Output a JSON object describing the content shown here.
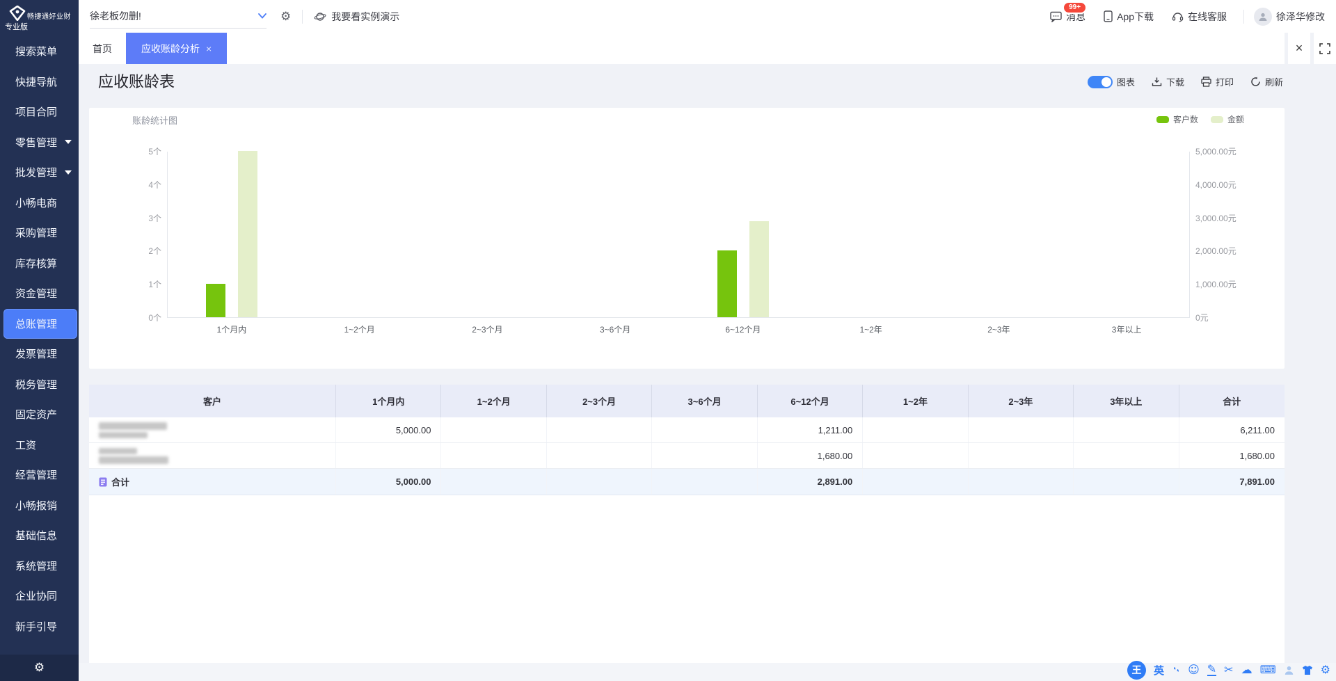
{
  "app": {
    "brand": "畅捷通好业财",
    "edition": "专业版",
    "company": "徐老板勿删!",
    "demo_link": "我要看实例演示",
    "messages_label": "消息",
    "messages_badge": "99+",
    "app_download_label": "App下载",
    "online_service_label": "在线客服",
    "user_name": "徐泽华修改"
  },
  "sidebar": {
    "items": [
      {
        "label": "搜索菜单",
        "active": false,
        "has_arrow": false
      },
      {
        "label": "快捷导航",
        "active": false,
        "has_arrow": false
      },
      {
        "label": "项目合同",
        "active": false,
        "has_arrow": false
      },
      {
        "label": "零售管理",
        "active": false,
        "has_arrow": true
      },
      {
        "label": "批发管理",
        "active": false,
        "has_arrow": true
      },
      {
        "label": "小畅电商",
        "active": false,
        "has_arrow": false
      },
      {
        "label": "采购管理",
        "active": false,
        "has_arrow": false
      },
      {
        "label": "库存核算",
        "active": false,
        "has_arrow": false
      },
      {
        "label": "资金管理",
        "active": false,
        "has_arrow": false
      },
      {
        "label": "总账管理",
        "active": true,
        "has_arrow": false
      },
      {
        "label": "发票管理",
        "active": false,
        "has_arrow": false
      },
      {
        "label": "税务管理",
        "active": false,
        "has_arrow": false
      },
      {
        "label": "固定资产",
        "active": false,
        "has_arrow": false
      },
      {
        "label": "工资",
        "active": false,
        "has_arrow": false
      },
      {
        "label": "经营管理",
        "active": false,
        "has_arrow": false
      },
      {
        "label": "小畅报销",
        "active": false,
        "has_arrow": false
      },
      {
        "label": "基础信息",
        "active": false,
        "has_arrow": false
      },
      {
        "label": "系统管理",
        "active": false,
        "has_arrow": false
      },
      {
        "label": "企业协同",
        "active": false,
        "has_arrow": false
      },
      {
        "label": "新手引导",
        "active": false,
        "has_arrow": false
      }
    ]
  },
  "tabs": [
    {
      "label": "首页",
      "active": false
    },
    {
      "label": "应收账龄分析",
      "active": true,
      "closable": true
    }
  ],
  "page": {
    "title": "应收账龄表",
    "toolbar": {
      "chart_toggle_label": "图表",
      "download_label": "下载",
      "print_label": "打印",
      "refresh_label": "刷新"
    }
  },
  "chart_data": {
    "type": "bar",
    "title": "账龄统计图",
    "categories": [
      "1个月内",
      "1~2个月",
      "2~3个月",
      "3~6个月",
      "6~12个月",
      "1~2年",
      "2~3年",
      "3年以上"
    ],
    "series": [
      {
        "name": "客户数",
        "axis": "left",
        "color": "#76c40d",
        "values": [
          1,
          0,
          0,
          0,
          2,
          0,
          0,
          0
        ]
      },
      {
        "name": "金额",
        "axis": "right",
        "color": "#e4efca",
        "values": [
          5000,
          0,
          0,
          0,
          2891,
          0,
          0,
          0
        ]
      }
    ],
    "left_axis": {
      "max": 5,
      "ticks": [
        "0个",
        "1个",
        "2个",
        "3个",
        "4个",
        "5个"
      ]
    },
    "right_axis": {
      "max": 5000,
      "ticks": [
        "0元",
        "1,000.00元",
        "2,000.00元",
        "3,000.00元",
        "4,000.00元",
        "5,000.00元"
      ]
    },
    "grid": false,
    "legend_position": "top-right"
  },
  "table": {
    "columns": [
      "客户",
      "1个月内",
      "1~2个月",
      "2~3个月",
      "3~6个月",
      "6~12个月",
      "1~2年",
      "2~3年",
      "3年以上",
      "合计"
    ],
    "rows": [
      {
        "customer_redacted": true,
        "values": [
          "5,000.00",
          "",
          "",
          "",
          "1,211.00",
          "",
          "",
          "",
          "6,211.00"
        ]
      },
      {
        "customer_redacted": true,
        "values": [
          "",
          "",
          "",
          "",
          "1,680.00",
          "",
          "",
          "",
          "1,680.00"
        ]
      }
    ],
    "total_row": {
      "label": "合计",
      "values": [
        "5,000.00",
        "",
        "",
        "",
        "2,891.00",
        "",
        "",
        "",
        "7,891.00"
      ]
    }
  },
  "ime": {
    "primary": "王",
    "mode": "英"
  },
  "colors": {
    "sidebar_bg": "#233154",
    "active_item": "#4c7df8",
    "tab_active": "#5d7cf8",
    "toggle_on": "#3f86f7",
    "badge_red": "#f5483b",
    "bar_customers": "#76c40d",
    "bar_amount": "#e4efca",
    "table_header_bg": "#e9ecf8",
    "total_row_bg": "#eff5fd",
    "total_icon_purple": "#8b7cf0"
  }
}
